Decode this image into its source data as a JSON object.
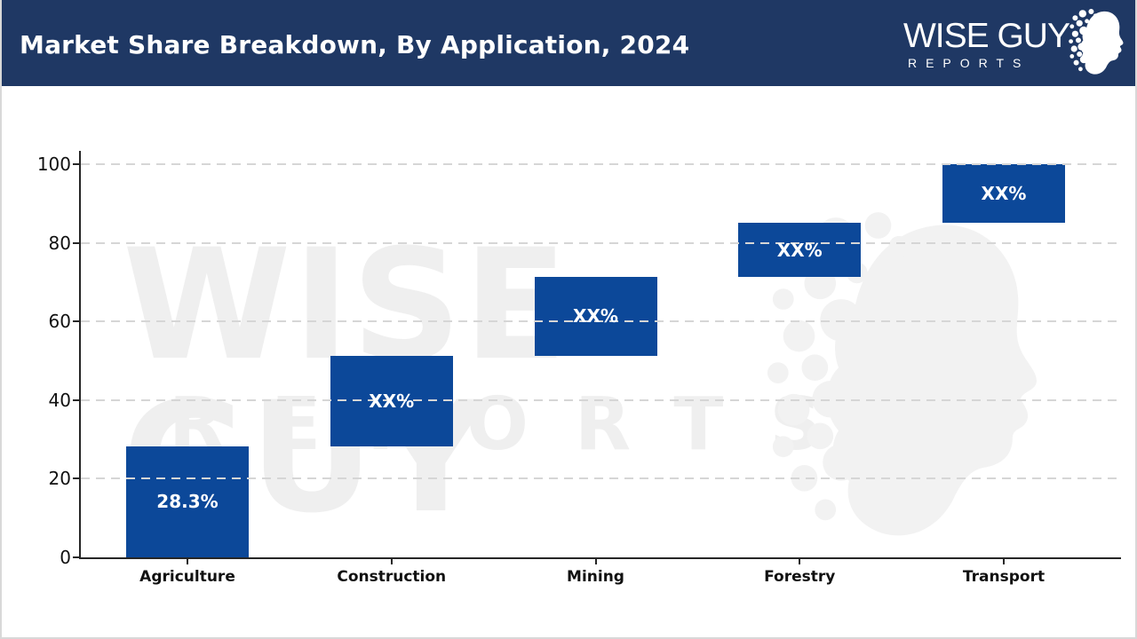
{
  "header": {
    "title": "Market Share Breakdown, By Application, 2024",
    "bg_color": "#1f3864"
  },
  "logo": {
    "line1": "WISE GUY",
    "line2": "REPORTS"
  },
  "watermark": {
    "line1": "WISE GUY",
    "line2": "REPORTS"
  },
  "chart_data": {
    "type": "bar",
    "subtype": "waterfall-floating-bars",
    "title": "Market Share Breakdown, By Application, 2024",
    "categories": [
      "Agriculture",
      "Construction",
      "Mining",
      "Forestry",
      "Transport"
    ],
    "segments": [
      {
        "category": "Agriculture",
        "start": 0,
        "end": 28.3,
        "label": "28.3%"
      },
      {
        "category": "Construction",
        "start": 28.3,
        "end": 51.2,
        "label": "XX%"
      },
      {
        "category": "Mining",
        "start": 51.2,
        "end": 71.4,
        "label": "XX%"
      },
      {
        "category": "Forestry",
        "start": 71.4,
        "end": 85.0,
        "label": "XX%"
      },
      {
        "category": "Transport",
        "start": 85.0,
        "end": 100,
        "label": "XX%"
      }
    ],
    "xlabel": "",
    "ylabel": "",
    "ylim": [
      0,
      100
    ],
    "yticks": [
      0,
      20,
      40,
      60,
      80,
      100
    ],
    "grid": "horizontal dashed, drawn above bars",
    "legend": "none",
    "bar_color": "#0c4899",
    "bar_label_color": "#ffffff"
  }
}
